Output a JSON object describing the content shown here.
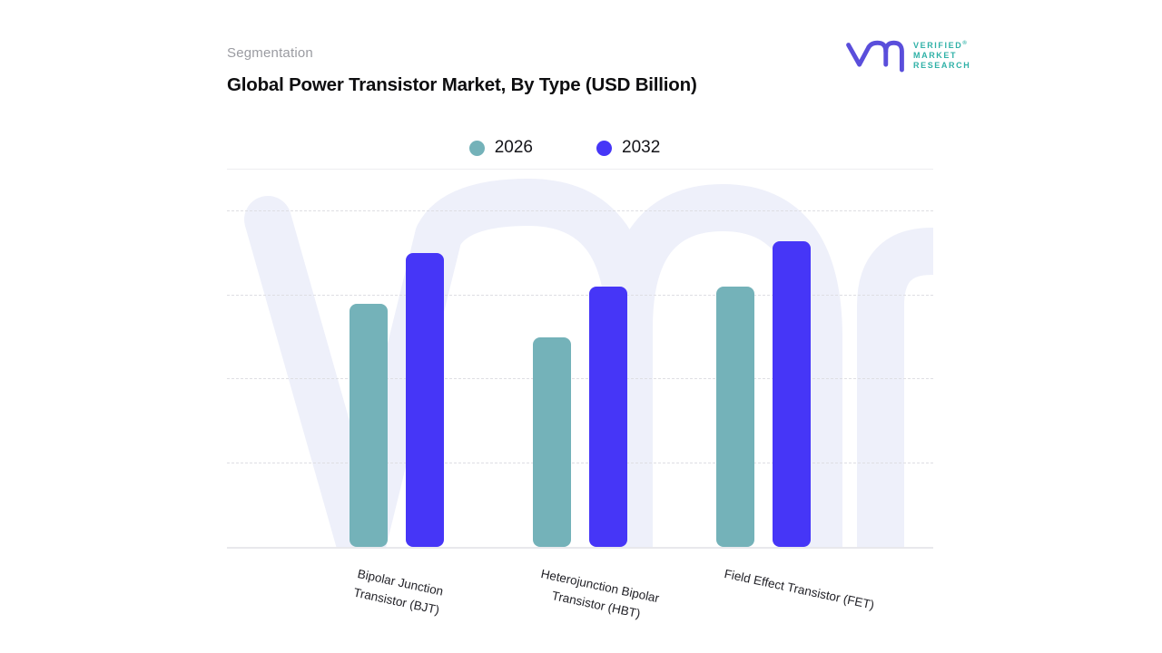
{
  "header": {
    "eyebrow": "Segmentation",
    "title": "Global Power Transistor Market, By Type (USD Billion)",
    "logo": {
      "line1": "VERIFIED",
      "registered": "®",
      "line2": "MARKET",
      "line3": "RESEARCH",
      "mark_color": "#5a4edb",
      "text_color": "#2fb1a7"
    }
  },
  "legend": {
    "items": [
      {
        "label": "2026",
        "color": "#74b2b9"
      },
      {
        "label": "2032",
        "color": "#4636f7"
      }
    ]
  },
  "chart_data": {
    "type": "bar",
    "title": "Global Power Transistor Market, By Type (USD Billion)",
    "categories": [
      "Bipolar Junction Transistor (BJT)",
      "Heterojunction Bipolar Transistor (HBT)",
      "Field Effect Transistor (FET)"
    ],
    "category_lines": [
      [
        "Bipolar Junction",
        "Transistor (BJT)"
      ],
      [
        "Heterojunction Bipolar",
        "Transistor (HBT)"
      ],
      [
        "Field Effect Transistor (FET)"
      ]
    ],
    "series": [
      {
        "name": "2026",
        "color": "#74b2b9",
        "values": [
          2.9,
          2.5,
          3.1
        ]
      },
      {
        "name": "2032",
        "color": "#4636f7",
        "values": [
          3.5,
          3.1,
          3.65
        ]
      }
    ],
    "value_axis": {
      "visible": false,
      "range": [
        0,
        4.5
      ],
      "gridline_values": [
        1,
        2,
        3,
        4
      ],
      "gridline_style": "dashed",
      "note": "no numeric tick labels shown; values estimated in gridline units"
    },
    "legend_position": "top-center",
    "grid": true,
    "group_centers_pct": [
      24.1,
      50,
      75.9
    ],
    "xlabel_rotation_deg": 12,
    "watermark": "vmr"
  }
}
